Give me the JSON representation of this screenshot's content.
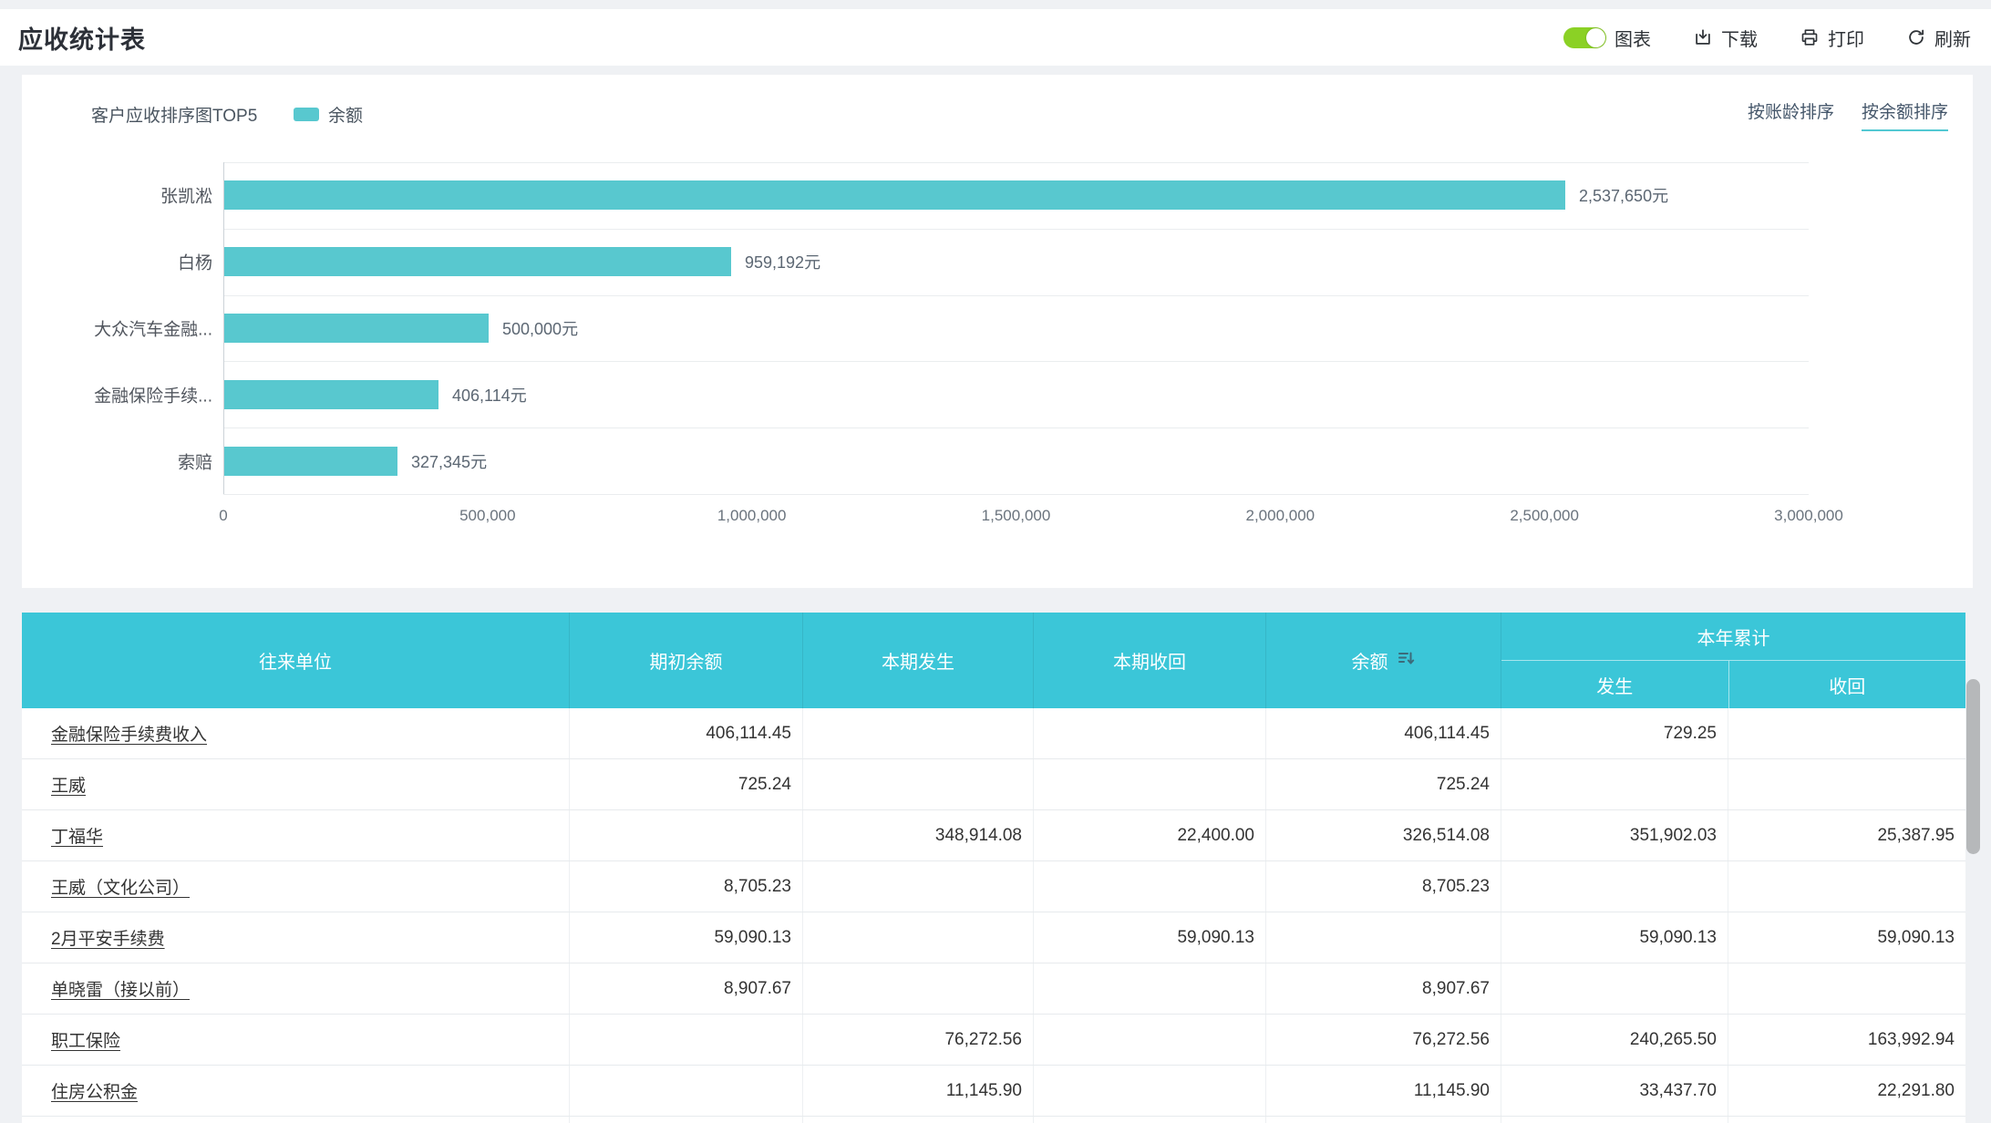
{
  "header": {
    "title": "应收统计表",
    "toggle": {
      "label": "图表",
      "state": "on",
      "color": "#8bd125"
    },
    "actions": [
      {
        "label": "下载",
        "icon": "download-icon"
      },
      {
        "label": "打印",
        "icon": "printer-icon"
      },
      {
        "label": "刷新",
        "icon": "refresh-icon"
      }
    ]
  },
  "chart_card": {
    "title": "客户应收排序图TOP5",
    "legend": {
      "label": "余额",
      "color": "#58c8cf"
    },
    "sort_tabs": [
      {
        "label": "按账龄排序",
        "active": false
      },
      {
        "label": "按余额排序",
        "active": true
      }
    ]
  },
  "chart_data": {
    "type": "bar",
    "orientation": "horizontal",
    "title": "客户应收排序图TOP5",
    "categories": [
      "张凯淞",
      "白杨",
      "大众汽车金融...",
      "金融保险手续...",
      "索赔"
    ],
    "series": [
      {
        "name": "余额",
        "values": [
          2537650,
          959192,
          500000,
          406114,
          327345
        ]
      }
    ],
    "value_labels": [
      "2,537,650元",
      "959,192元",
      "500,000元",
      "406,114元",
      "327,345元"
    ],
    "xlim": [
      0,
      3000000
    ],
    "x_ticks": [
      "0",
      "500,000",
      "1,000,000",
      "1,500,000",
      "2,000,000",
      "2,500,000",
      "3,000,000"
    ],
    "bar_color": "#58c8cf",
    "legend_position": "top-left",
    "grid": true,
    "unit_suffix": "元"
  },
  "table": {
    "header_bg": "#3bc6d8",
    "columns": [
      {
        "label": "往来单位"
      },
      {
        "label": "期初余额"
      },
      {
        "label": "本期发生"
      },
      {
        "label": "本期收回"
      },
      {
        "label": "余额",
        "sorted": "desc"
      },
      {
        "label": "本年累计",
        "children": [
          {
            "label": "发生"
          },
          {
            "label": "收回"
          }
        ]
      }
    ],
    "rows": [
      {
        "name": "金融保险手续费收入",
        "cells": [
          "406,114.45",
          "",
          "",
          "406,114.45",
          "729.25",
          ""
        ]
      },
      {
        "name": "王威",
        "cells": [
          "725.24",
          "",
          "",
          "725.24",
          "",
          ""
        ]
      },
      {
        "name": "丁福华",
        "cells": [
          "",
          "348,914.08",
          "22,400.00",
          "326,514.08",
          "351,902.03",
          "25,387.95"
        ]
      },
      {
        "name": "王威（文化公司）",
        "cells": [
          "8,705.23",
          "",
          "",
          "8,705.23",
          "",
          ""
        ]
      },
      {
        "name": "2月平安手续费",
        "cells": [
          "59,090.13",
          "",
          "59,090.13",
          "",
          "59,090.13",
          "59,090.13"
        ]
      },
      {
        "name": "单晓雷（接以前）",
        "cells": [
          "8,907.67",
          "",
          "",
          "8,907.67",
          "",
          ""
        ]
      },
      {
        "name": "职工保险",
        "cells": [
          "",
          "76,272.56",
          "",
          "76,272.56",
          "240,265.50",
          "163,992.94"
        ]
      },
      {
        "name": "住房公积金",
        "cells": [
          "",
          "11,145.90",
          "",
          "11,145.90",
          "33,437.70",
          "22,291.80"
        ]
      }
    ]
  },
  "colors": {
    "accent_teal": "#3bc6d8",
    "bar_teal": "#58c8cf",
    "toggle_green": "#8bd125",
    "tab_underline": "#52c8d2"
  }
}
